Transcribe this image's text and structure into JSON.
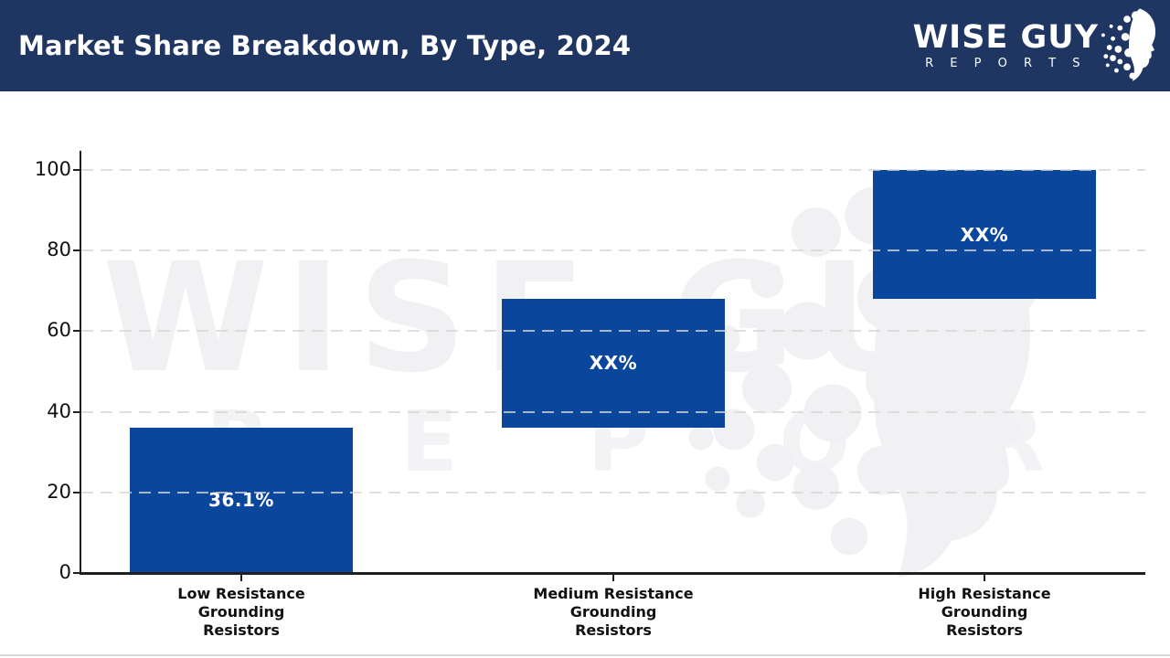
{
  "header": {
    "title": "Market Share Breakdown, By Type, 2024",
    "logo": {
      "wise_guy": "WISE GUY",
      "reports": "R E P O R T S"
    }
  },
  "watermark": {
    "wise_guy": "WISE GUY",
    "reports": "R E P O R T S"
  },
  "colors": {
    "header_bg": "#1f3562",
    "bar": "#0a479c",
    "bar_label": "#ffffff",
    "grid": "#d6d6d6",
    "axis": "#1f1f1f"
  },
  "chart_data": {
    "type": "bar",
    "variant": "waterfall",
    "title": "Market Share Breakdown, By Type, 2024",
    "categories": [
      [
        "Low Resistance",
        "Grounding",
        "Resistors"
      ],
      [
        "Medium Resistance",
        "Grounding",
        "Resistors"
      ],
      [
        "High Resistance",
        "Grounding",
        "Resistors"
      ]
    ],
    "bars": [
      {
        "label": "36.1%",
        "start": 0,
        "end": 36.1
      },
      {
        "label": "XX%",
        "start": 36.1,
        "end": 68
      },
      {
        "label": "XX%",
        "start": 68,
        "end": 100
      }
    ],
    "y_ticks": [
      0,
      20,
      40,
      60,
      80,
      100
    ],
    "ylim": [
      0,
      105
    ],
    "xlabel": "",
    "ylabel": "",
    "grid": "horizontal-dashed",
    "grid_over_bars": true,
    "legend": "none"
  }
}
